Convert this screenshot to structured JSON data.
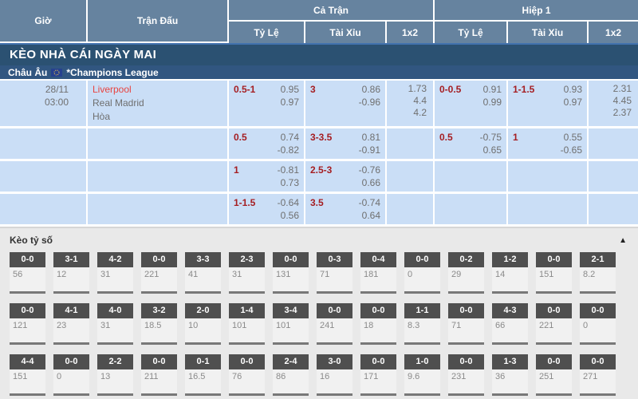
{
  "table_header": {
    "col_time": "Giờ",
    "col_match": "Trận Đấu",
    "group_full": "Cả Trận",
    "group_half": "Hiệp 1",
    "sub_hdp": "Tỷ Lệ",
    "sub_ou": "Tài Xỉu",
    "sub_1x2": "1x2"
  },
  "banner": {
    "title": "KÈO NHÀ CÁI NGÀY MAI"
  },
  "league_bar": {
    "region": "Châu Âu",
    "flag_icon": "eu-flag-icon",
    "league": "*Champions League"
  },
  "match": {
    "date": "28/11",
    "time": "03:00",
    "teams": [
      "Liverpool",
      "Real Madrid",
      "Hòa"
    ]
  },
  "odds_rows": [
    {
      "ft": {
        "hdp": {
          "line": "0.5-1",
          "odds": [
            "0.95",
            "0.97"
          ]
        },
        "ou": {
          "line": "3",
          "odds": [
            "0.86",
            "-0.96"
          ]
        },
        "x12": [
          "1.73",
          "4.4",
          "4.2"
        ]
      },
      "h1": {
        "hdp": {
          "line": "0-0.5",
          "odds": [
            "0.91",
            "0.99"
          ]
        },
        "ou": {
          "line": "1-1.5",
          "odds": [
            "0.93",
            "0.97"
          ]
        },
        "x12": [
          "2.31",
          "4.45",
          "2.37"
        ]
      }
    },
    {
      "ft": {
        "hdp": {
          "line": "0.5",
          "odds": [
            "0.74",
            "-0.82"
          ]
        },
        "ou": {
          "line": "3-3.5",
          "odds": [
            "0.81",
            "-0.91"
          ]
        },
        "x12": []
      },
      "h1": {
        "hdp": {
          "line": "0.5",
          "odds": [
            "-0.75",
            "0.65"
          ]
        },
        "ou": {
          "line": "1",
          "odds": [
            "0.55",
            "-0.65"
          ]
        },
        "x12": []
      }
    },
    {
      "ft": {
        "hdp": {
          "line": "1",
          "odds": [
            "-0.81",
            "0.73"
          ]
        },
        "ou": {
          "line": "2.5-3",
          "odds": [
            "-0.76",
            "0.66"
          ]
        },
        "x12": []
      },
      "h1": {
        "hdp": null,
        "ou": null,
        "x12": []
      }
    },
    {
      "ft": {
        "hdp": {
          "line": "1-1.5",
          "odds": [
            "-0.64",
            "0.56"
          ]
        },
        "ou": {
          "line": "3.5",
          "odds": [
            "-0.74",
            "0.64"
          ]
        },
        "x12": []
      },
      "h1": {
        "hdp": null,
        "ou": null,
        "x12": []
      }
    }
  ],
  "score_section": {
    "title": "Kèo tỷ số",
    "collapse_icon": "▲",
    "rows": [
      {
        "scores": [
          "0-0",
          "3-1",
          "4-2",
          "0-0",
          "3-3",
          "2-3",
          "0-0",
          "0-3",
          "0-4",
          "0-0",
          "0-2",
          "1-2",
          "0-0",
          "2-1"
        ],
        "values": [
          "56",
          "12",
          "31",
          "221",
          "41",
          "31",
          "131",
          "71",
          "181",
          "0",
          "29",
          "14",
          "151",
          "8.2"
        ]
      },
      {
        "scores": [
          "0-0",
          "4-1",
          "4-0",
          "3-2",
          "2-0",
          "1-4",
          "3-4",
          "0-0",
          "0-0",
          "1-1",
          "0-0",
          "4-3",
          "0-0",
          "0-0"
        ],
        "values": [
          "121",
          "23",
          "31",
          "18.5",
          "10",
          "101",
          "101",
          "241",
          "18",
          "8.3",
          "71",
          "66",
          "221",
          "0"
        ]
      },
      {
        "scores": [
          "4-4",
          "0-0",
          "2-2",
          "0-0",
          "0-1",
          "0-0",
          "2-4",
          "3-0",
          "0-0",
          "1-0",
          "0-0",
          "1-3",
          "0-0",
          "0-0"
        ],
        "values": [
          "151",
          "0",
          "13",
          "211",
          "16.5",
          "76",
          "86",
          "16",
          "171",
          "9.6",
          "231",
          "36",
          "251",
          "271"
        ]
      }
    ]
  },
  "colors": {
    "header_blue": "#66839f",
    "banner_navy": "#2b5172",
    "league_navy": "#315680",
    "divider_blue": "#4272ae",
    "row_blue": "#cadef6",
    "handicap_red": "#a51e22",
    "accent_red": "#e8433f",
    "odds_gray": "#6f6f6f",
    "score_box_dark": "#4f4f4f"
  }
}
